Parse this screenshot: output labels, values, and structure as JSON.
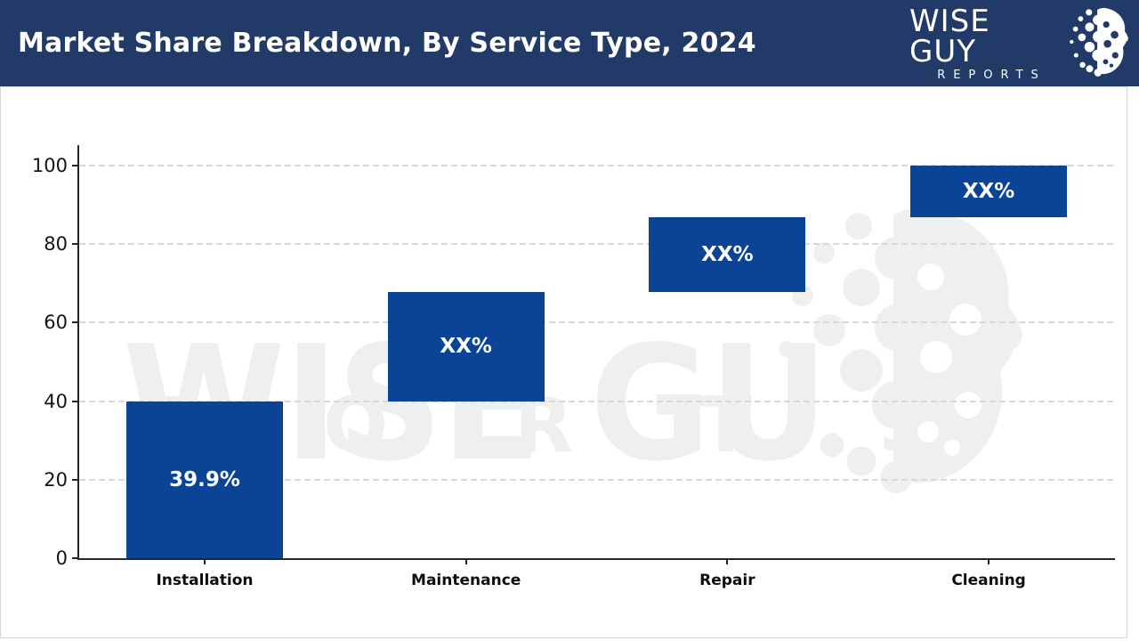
{
  "header": {
    "title": "Market Share Breakdown, By Service Type, 2024",
    "bg_color": "#213a67",
    "logo": {
      "brand": "WISE GUY",
      "sub": "REPORTS"
    }
  },
  "watermark": {
    "brand": "WISE GU",
    "sub": "P O R T S"
  },
  "chart_data": {
    "type": "bar",
    "subtype": "waterfall",
    "title": "Market Share Breakdown, By Service Type, 2024",
    "categories": [
      "Installation",
      "Maintenance",
      "Repair",
      "Cleaning"
    ],
    "segments": [
      {
        "category": "Installation",
        "start": 0,
        "end": 39.9,
        "label": "39.9%"
      },
      {
        "category": "Maintenance",
        "start": 39.9,
        "end": 67.9,
        "label": "XX%"
      },
      {
        "category": "Repair",
        "start": 67.9,
        "end": 86.9,
        "label": "XX%"
      },
      {
        "category": "Cleaning",
        "start": 86.9,
        "end": 100,
        "label": "XX%"
      }
    ],
    "ylim": [
      0,
      100
    ],
    "yticks": [
      0,
      20,
      40,
      60,
      80,
      100
    ],
    "xlabel": "",
    "ylabel": "",
    "legend": "none",
    "grid": "horizontal-dashed",
    "colors": {
      "bar": "#0b4397",
      "bar_label": "#ffffff",
      "axis": "#262626",
      "grid": "#d8d8d8",
      "header_bg": "#213a67",
      "watermark": "#efefef"
    }
  }
}
